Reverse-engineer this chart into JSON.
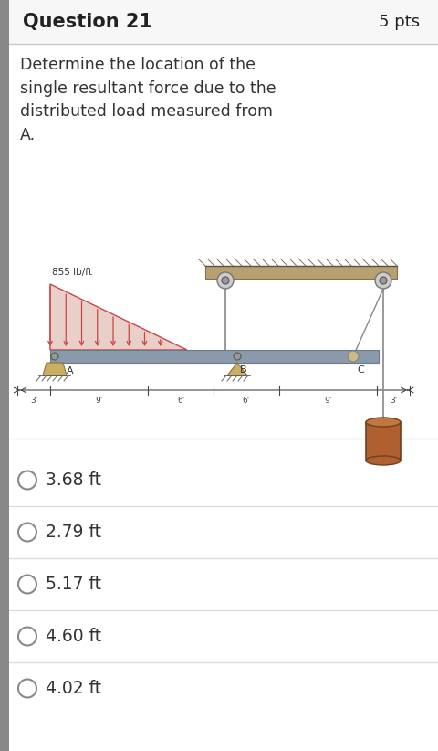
{
  "title": "Question 21",
  "pts": "5 pts",
  "question_text": "Determine the location of the\nsingle resultant force due to the\ndistributed load measured from\nA.",
  "load_label": "855 lb/ft",
  "choices": [
    "3.68 ft",
    "2.79 ft",
    "5.17 ft",
    "4.60 ft",
    "4.02 ft"
  ],
  "dim_values": [
    "-3'←",
    "9'",
    "6'",
    "6'",
    "9'",
    "3'→"
  ],
  "bg_color": "#ffffff",
  "title_color": "#f7f7f7",
  "border_color": "#c8c8c8",
  "beam_color": "#8a9aaa",
  "beam_edge": "#6a7a8a",
  "ceil_color": "#b8a070",
  "ceil_edge": "#8a7050",
  "load_fill": "#e8d0c8",
  "load_edge": "#cc4444",
  "support_color": "#c8b060",
  "support_edge": "#907040",
  "weight_color": "#b06030",
  "weight_edge": "#704020",
  "rope_color": "#888888",
  "sep_color": "#dddddd",
  "choice_circle_color": "#888888",
  "dim_color": "#444444",
  "text_color": "#333333",
  "title_text_color": "#222222"
}
